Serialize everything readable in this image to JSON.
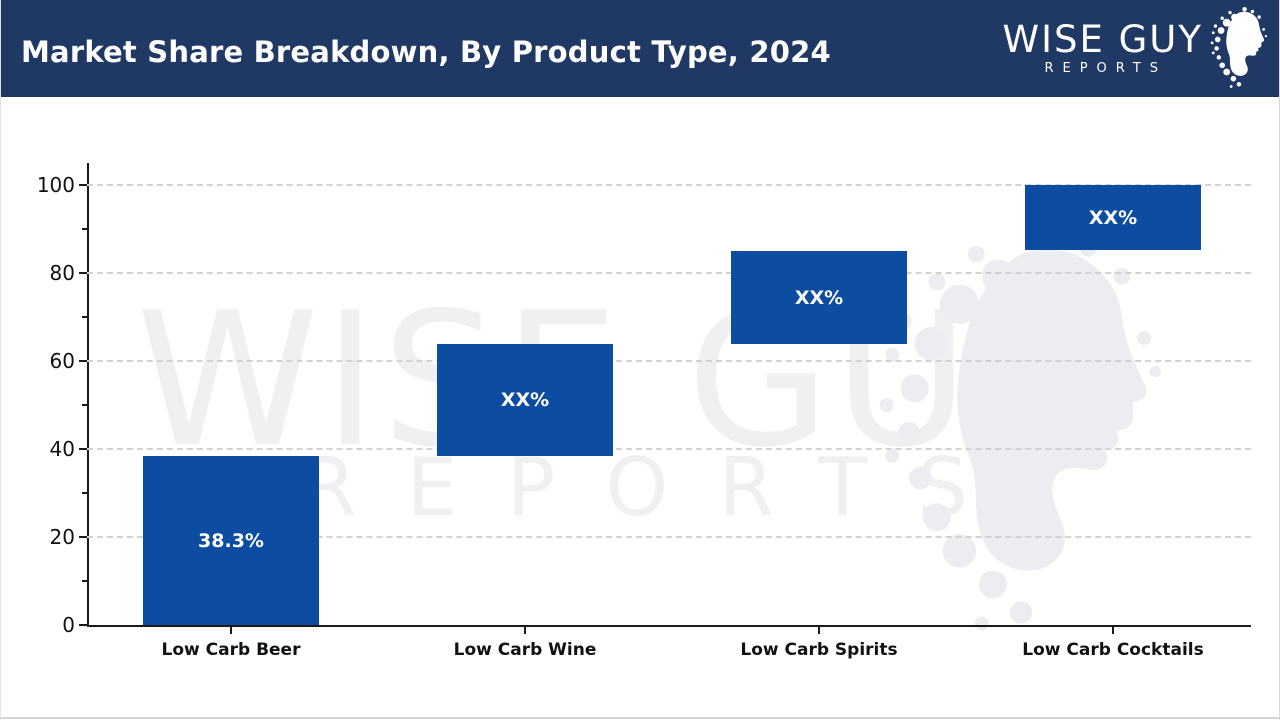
{
  "header": {
    "title": "Market Share Breakdown, By Product Type, 2024",
    "bg_color": "#1f3864",
    "logo": {
      "line1": "WISE GUY",
      "line2": "REPORTS"
    }
  },
  "watermark": {
    "line1": "WISE GUY",
    "line2": "REPORTS"
  },
  "chart_data": {
    "type": "bar",
    "subtype": "waterfall-floating-bars",
    "title": "Market Share Breakdown, By Product Type, 2024",
    "categories": [
      "Low Carb Beer",
      "Low Carb Wine",
      "Low Carb Spirits",
      "Low Carb Cocktails"
    ],
    "segments": [
      {
        "category": "Low Carb Beer",
        "start": 0,
        "end": 38.3,
        "label": "38.3%"
      },
      {
        "category": "Low Carb Wine",
        "start": 38.3,
        "end": 63.8,
        "label": "XX%"
      },
      {
        "category": "Low Carb Spirits",
        "start": 63.8,
        "end": 85.0,
        "label": "XX%"
      },
      {
        "category": "Low Carb Cocktails",
        "start": 85.2,
        "end": 100.0,
        "label": "XX%"
      }
    ],
    "xlabel": "",
    "ylabel": "",
    "y_ticks": [
      0,
      20,
      40,
      60,
      80,
      100
    ],
    "y_minor_ticks": [
      10,
      30,
      50,
      70,
      90
    ],
    "ylim": [
      0,
      105
    ],
    "grid": "horizontal-dashed",
    "legend": "none",
    "bar_color": "#0c4da2",
    "bar_value_text_color": "#ffffff",
    "axis_color": "#1a1a1a",
    "gridline_color": "#d2d2d2"
  }
}
